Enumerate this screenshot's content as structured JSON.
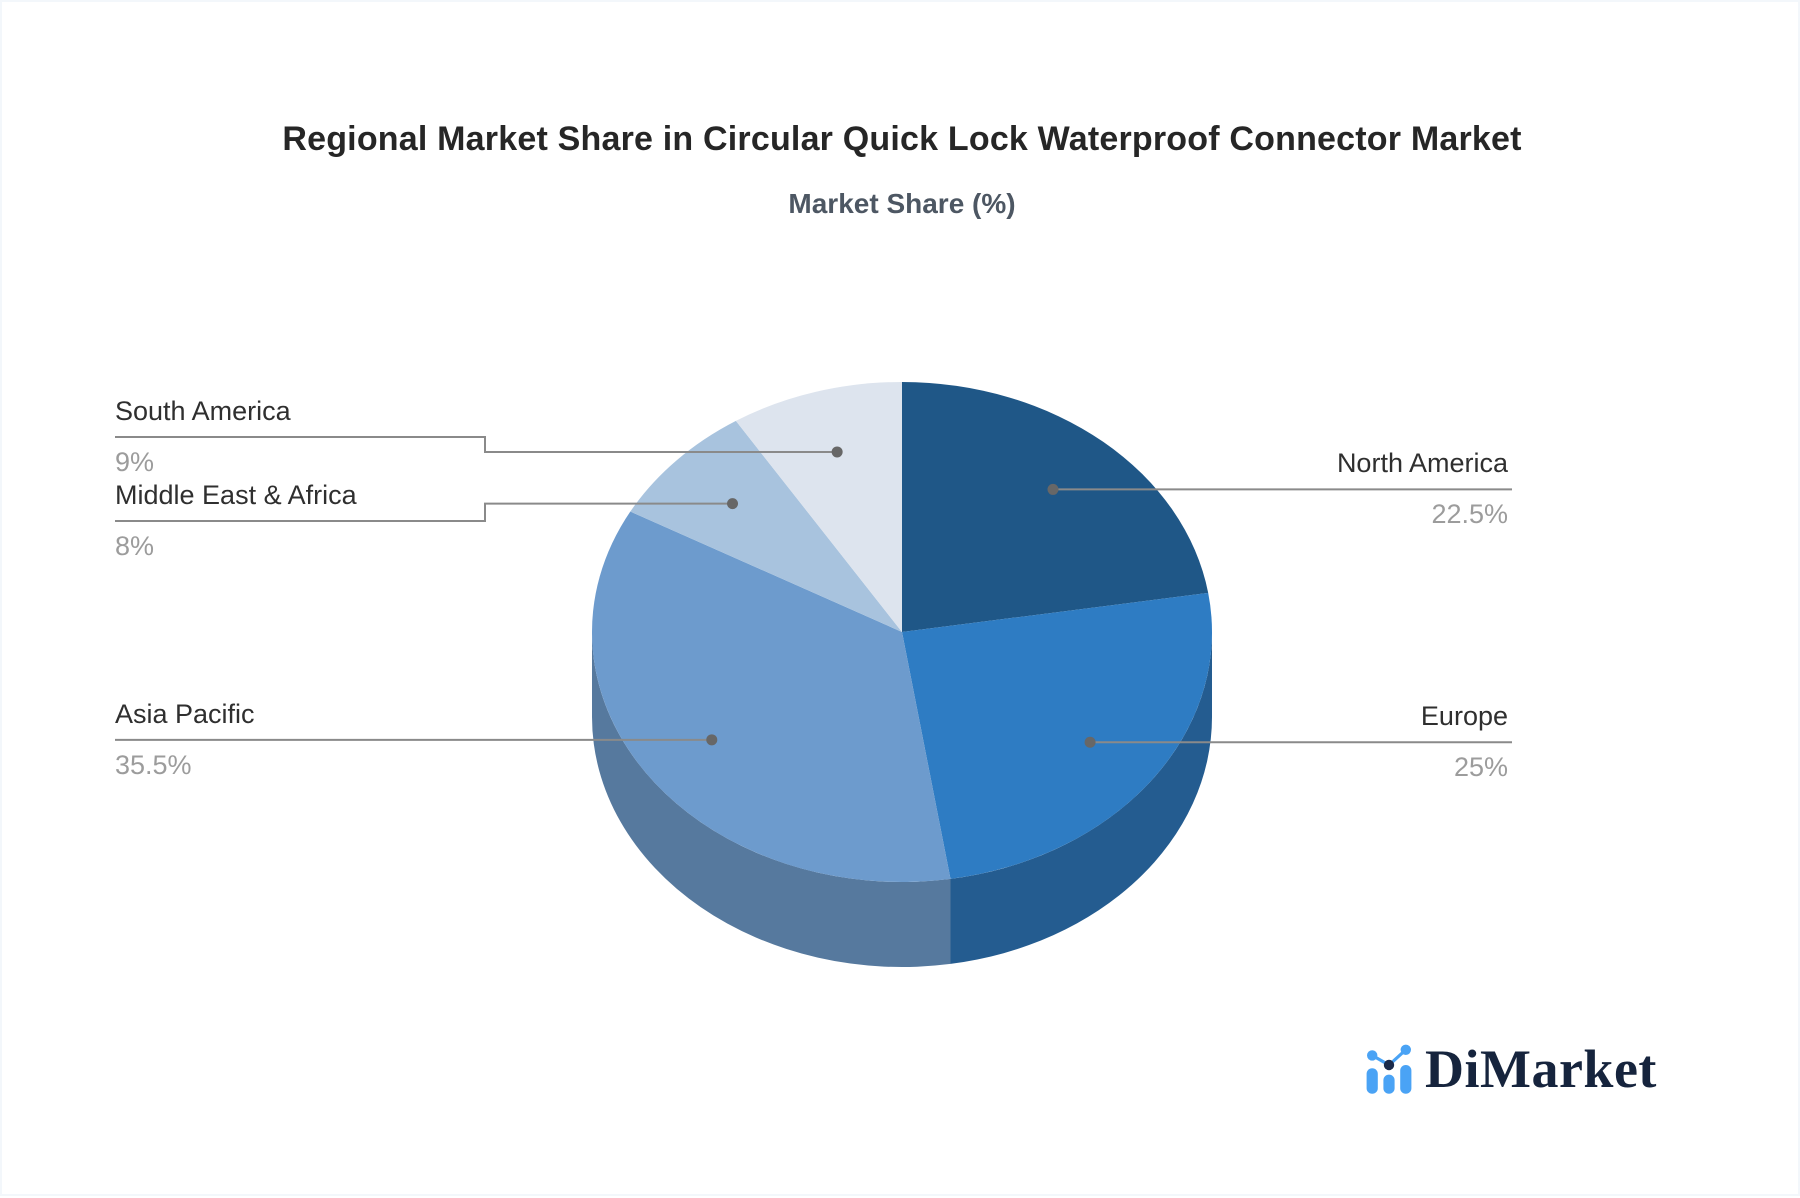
{
  "header": {
    "title": "Regional Market Share in Circular Quick Lock Waterproof Connector Market",
    "subtitle": "Market Share (%)"
  },
  "chart_data": {
    "type": "pie",
    "is_3d": true,
    "title": "Regional Market Share in Circular Quick Lock Waterproof Connector Market",
    "subtitle": "Market Share (%)",
    "unit": "%",
    "start_angle": "12 o'clock",
    "direction": "clockwise",
    "legend_position": "none",
    "total": 100,
    "slices": [
      {
        "label": "North America",
        "value": 22.5,
        "display": "22.5%",
        "color": "#1f5787",
        "side_color": "#17466e",
        "label_side": "right"
      },
      {
        "label": "Europe",
        "value": 25,
        "display": "25%",
        "color": "#2e7cc3",
        "side_color": "#245c90",
        "label_side": "right"
      },
      {
        "label": "Asia Pacific",
        "value": 35.5,
        "display": "35.5%",
        "color": "#6d9bcd",
        "side_color": "#56799e",
        "label_side": "left"
      },
      {
        "label": "Middle East & Africa",
        "value": 8,
        "display": "8%",
        "color": "#a8c3de",
        "side_color": "#89a6c2",
        "label_side": "left"
      },
      {
        "label": "South America",
        "value": 9,
        "display": "9%",
        "color": "#dde4ee",
        "side_color": "#b8c3d5",
        "label_side": "left"
      }
    ],
    "connector_color": "#8a8a8a",
    "dot_color": "#676767"
  },
  "logo": {
    "text": "DiMarket"
  }
}
